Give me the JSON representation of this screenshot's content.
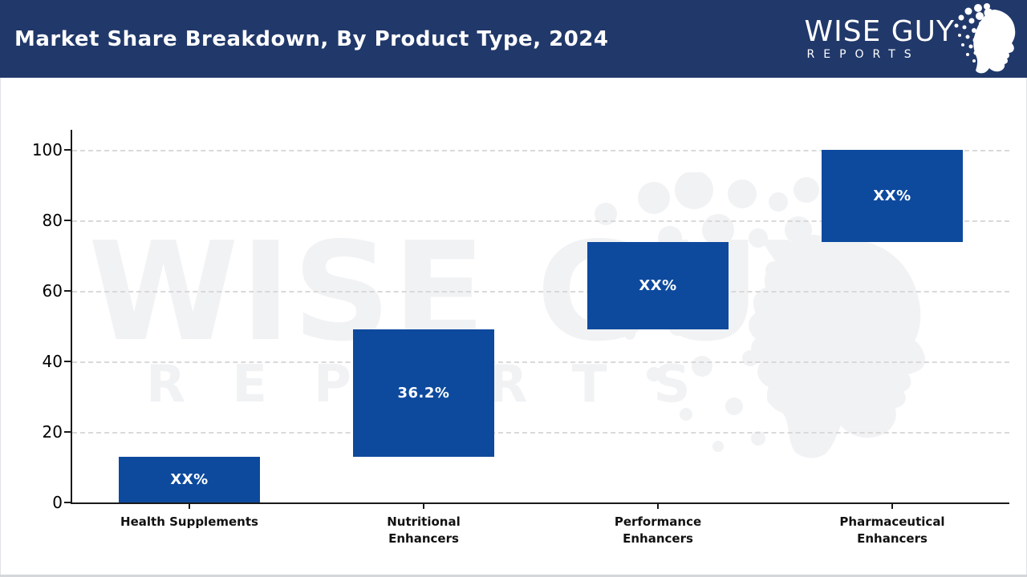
{
  "header": {
    "title": "Market Share Breakdown, By Product Type, 2024",
    "logo": {
      "wordmark": "WISE GUY",
      "subtitle": "REPORTS"
    }
  },
  "watermark": {
    "line1": "WISE GUY",
    "line2": "REPORTS"
  },
  "chart_data": {
    "type": "bar",
    "subtype": "waterfall",
    "title": "Market Share Breakdown, By Product Type, 2024",
    "categories": [
      "Health Supplements",
      "Nutritional Enhancers",
      "Performance Enhancers",
      "Pharmaceutical Enhancers"
    ],
    "category_lines": [
      [
        "Health Supplements"
      ],
      [
        "Nutritional",
        "Enhancers"
      ],
      [
        "Performance",
        "Enhancers"
      ],
      [
        "Pharmaceutical",
        "Enhancers"
      ]
    ],
    "bars": [
      {
        "category": "Health Supplements",
        "start": 0,
        "end": 13,
        "label": "XX%"
      },
      {
        "category": "Nutritional Enhancers",
        "start": 13,
        "end": 49.2,
        "label": "36.2%"
      },
      {
        "category": "Performance Enhancers",
        "start": 49.2,
        "end": 73.8,
        "label": "XX%"
      },
      {
        "category": "Pharmaceutical Enhancers",
        "start": 73.8,
        "end": 100,
        "label": "XX%"
      }
    ],
    "y_ticks": [
      0,
      20,
      40,
      60,
      80,
      100
    ],
    "ylim": [
      0,
      100
    ],
    "xlabel": "",
    "ylabel": "",
    "grid": "horizontal-dashed",
    "legend": "none",
    "colors": {
      "bar": "#0d4a9e",
      "header_bg": "#21386a",
      "grid": "#d9d9d9",
      "axis": "#1a1a1a",
      "bar_label_text": "#ffffff",
      "watermark": "#f1f2f4"
    }
  }
}
